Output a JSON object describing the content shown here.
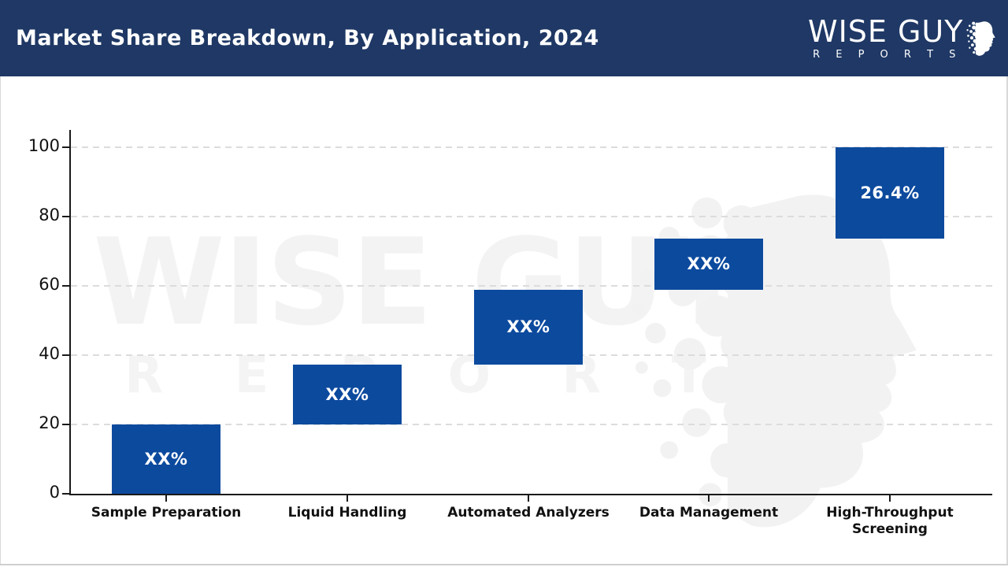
{
  "header": {
    "title": "Market Share Breakdown, By Application, 2024"
  },
  "logo": {
    "brand_top": "WISE GUY",
    "brand_bottom": "R E P O R T S"
  },
  "watermark": {
    "line1": "WISE GUY",
    "line2": "R E P O R T S"
  },
  "colors": {
    "header_bg": "#1f3865",
    "bar": "#0c4a9e",
    "grid": "#dcdcdc",
    "axis": "#1a1a1a",
    "bar_label": "#ffffff",
    "watermark": "#f2f2f2"
  },
  "chart_data": {
    "type": "bar",
    "variant": "waterfall",
    "title": "Market Share Breakdown, By Application, 2024",
    "categories": [
      "Sample Preparation",
      "Liquid Handling",
      "Automated Analyzers",
      "Data Management",
      "High-Throughput Screening"
    ],
    "segments": [
      {
        "category": "Sample Preparation",
        "start": 0,
        "end": 20,
        "label": "XX%"
      },
      {
        "category": "Liquid Handling",
        "start": 20,
        "end": 37.3,
        "label": "XX%"
      },
      {
        "category": "Automated Analyzers",
        "start": 37.3,
        "end": 58.9,
        "label": "XX%"
      },
      {
        "category": "Data Management",
        "start": 58.9,
        "end": 73.6,
        "label": "XX%"
      },
      {
        "category": "High-Throughput Screening",
        "start": 73.6,
        "end": 100,
        "label": "26.4%"
      }
    ],
    "yticks": [
      0,
      20,
      40,
      60,
      80,
      100
    ],
    "ylim": [
      0,
      105
    ],
    "xlabel": "",
    "ylabel": "",
    "grid": "horizontal-dashed",
    "legend": "none"
  }
}
